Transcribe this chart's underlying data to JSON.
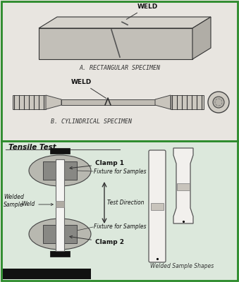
{
  "bg_top": "#e8e5e0",
  "bg_bot": "#dce8dc",
  "border_color": "#2a8a2a",
  "label_a": "A. RECTANGULAR SPECIMEN",
  "label_b": "B. CYLINDRICAL SPECIMEN",
  "tensile_title": "Tensile Test",
  "clamp1": "Clamp 1",
  "clamp2": "Clamp 2",
  "fixture1": "Fixture for Samples",
  "fixture2": "Fixture for Samples",
  "weld_label": "Weld",
  "welded_sample": "Welded\nSample",
  "test_direction": "Test Direction",
  "weld_top_a": "WELD",
  "weld_top_b": "WELD",
  "welded_shapes": "Welded Sample Shapes"
}
